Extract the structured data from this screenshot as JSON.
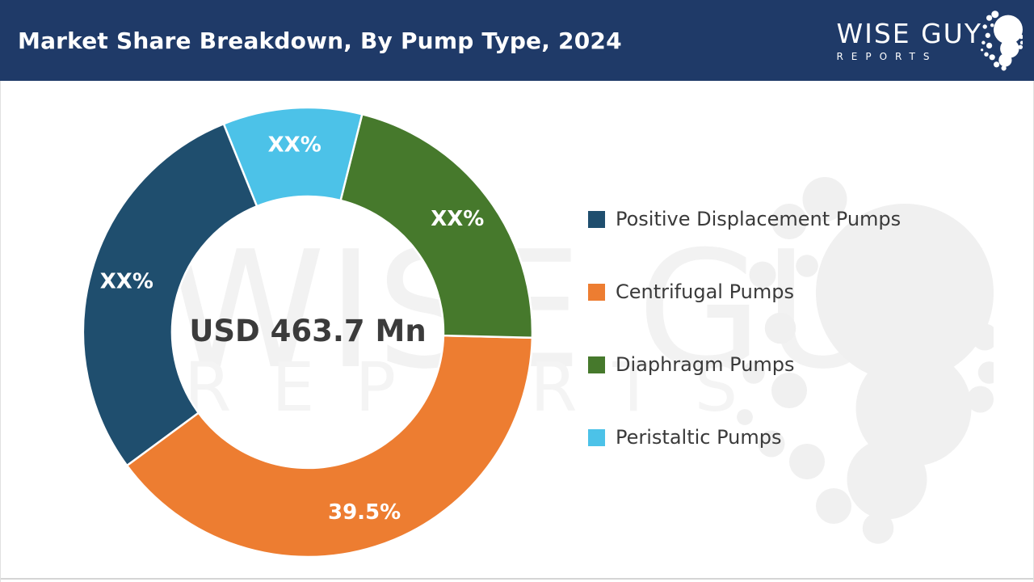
{
  "header": {
    "title": "Market Share Breakdown, By Pump Type, 2024",
    "logo": {
      "line1": "WISE GUY",
      "line2": "REPORTS"
    }
  },
  "watermark": {
    "line1": "WISE GUY",
    "line2": "REPORTS"
  },
  "chart_data": {
    "type": "pie",
    "subtype": "donut",
    "title": "Market Share Breakdown, By Pump Type, 2024",
    "center_label": "USD 463.7 Mn",
    "legend_position": "right",
    "start_angle_deg": 112,
    "direction": "ccw",
    "outer_radius": 278,
    "inner_radius": 168,
    "label_radius": 233,
    "series": [
      {
        "name": "Positive Displacement Pumps",
        "value": 29.0,
        "display_label": "XX%",
        "color": "#1f4e6e"
      },
      {
        "name": "Centrifugal Pumps",
        "value": 39.5,
        "display_label": "39.5%",
        "color": "#ed7d31"
      },
      {
        "name": "Diaphragm Pumps",
        "value": 21.5,
        "display_label": "XX%",
        "color": "#46792c"
      },
      {
        "name": "Peristaltic Pumps",
        "value": 10.0,
        "display_label": "XX%",
        "color": "#4cc2e8"
      }
    ]
  },
  "colors": {
    "header_bg": "#1f3a68",
    "text_dark": "#3a3a3a",
    "watermark": "#f2f2f2",
    "hairline": "#d5d5d5"
  }
}
